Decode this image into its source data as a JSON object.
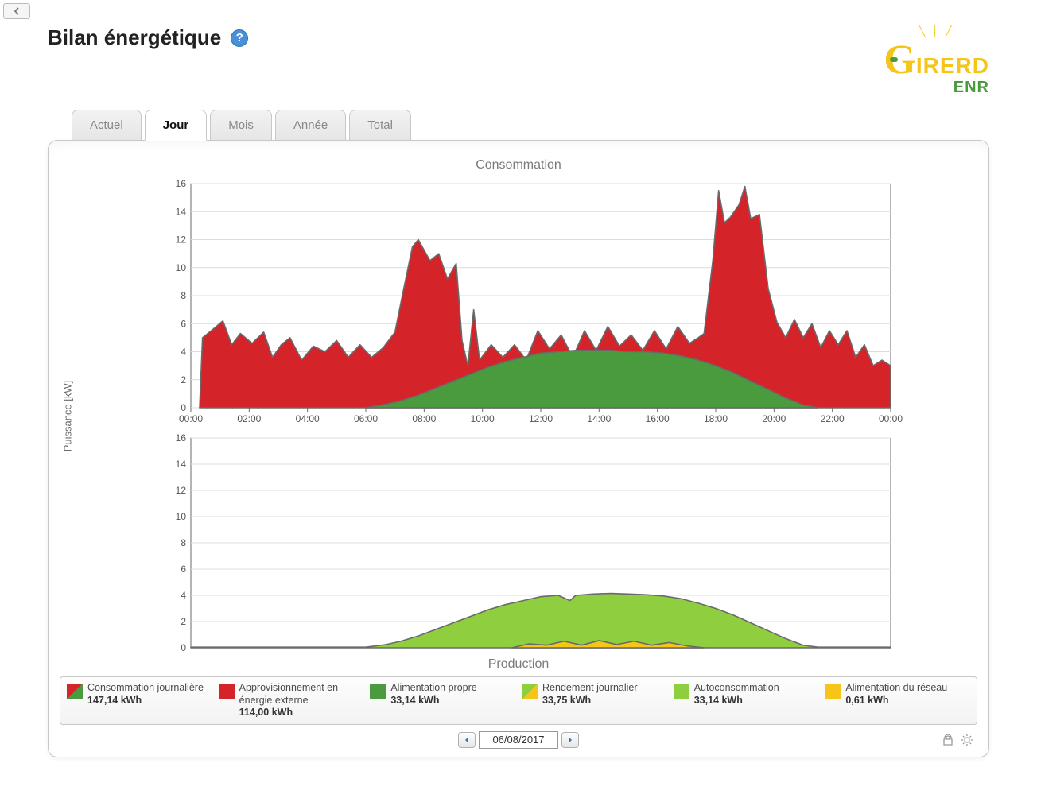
{
  "page_title": "Bilan énergétique",
  "logo": {
    "brand": "GIRERD",
    "sub": "ENR",
    "brand_color": "#f5c518",
    "sub_color": "#4a9b3e"
  },
  "tabs": [
    {
      "label": "Actuel",
      "active": false
    },
    {
      "label": "Jour",
      "active": true
    },
    {
      "label": "Mois",
      "active": false
    },
    {
      "label": "Année",
      "active": false
    },
    {
      "label": "Total",
      "active": false
    }
  ],
  "y_axis_label": "Puissance [kW]",
  "date_value": "06/08/2017",
  "chart_top": {
    "title": "Consommation",
    "type": "area",
    "ylim": [
      0,
      16
    ],
    "ytick_step": 2,
    "x_hours": [
      0,
      2,
      4,
      6,
      8,
      10,
      12,
      14,
      16,
      18,
      20,
      22,
      24
    ],
    "x_labels": [
      "00:00",
      "02:00",
      "04:00",
      "06:00",
      "08:00",
      "10:00",
      "12:00",
      "14:00",
      "16:00",
      "18:00",
      "20:00",
      "22:00",
      "00:00"
    ],
    "grid_color": "#dcdcdc",
    "axis_color": "#6a6a6a",
    "stroke_color": "#6a6a6a",
    "series_consumption": {
      "fill": "#d5232a",
      "points": [
        [
          0.3,
          0
        ],
        [
          0.4,
          5
        ],
        [
          0.7,
          5.5
        ],
        [
          1.1,
          6.2
        ],
        [
          1.4,
          4.5
        ],
        [
          1.7,
          5.3
        ],
        [
          2.1,
          4.6
        ],
        [
          2.5,
          5.4
        ],
        [
          2.8,
          3.6
        ],
        [
          3.1,
          4.5
        ],
        [
          3.4,
          5.0
        ],
        [
          3.8,
          3.4
        ],
        [
          4.2,
          4.4
        ],
        [
          4.6,
          4.0
        ],
        [
          5.0,
          4.8
        ],
        [
          5.4,
          3.6
        ],
        [
          5.8,
          4.5
        ],
        [
          6.2,
          3.6
        ],
        [
          6.6,
          4.3
        ],
        [
          7.0,
          5.4
        ],
        [
          7.3,
          8.5
        ],
        [
          7.6,
          11.5
        ],
        [
          7.8,
          12.0
        ],
        [
          8.2,
          10.5
        ],
        [
          8.5,
          11.0
        ],
        [
          8.8,
          9.2
        ],
        [
          9.1,
          10.3
        ],
        [
          9.3,
          4.8
        ],
        [
          9.5,
          3.0
        ],
        [
          9.7,
          7.0
        ],
        [
          9.9,
          3.4
        ],
        [
          10.3,
          4.5
        ],
        [
          10.7,
          3.6
        ],
        [
          11.1,
          4.5
        ],
        [
          11.5,
          3.4
        ],
        [
          11.9,
          5.5
        ],
        [
          12.3,
          4.2
        ],
        [
          12.7,
          5.2
        ],
        [
          13.1,
          3.6
        ],
        [
          13.5,
          5.5
        ],
        [
          13.9,
          4.1
        ],
        [
          14.3,
          5.8
        ],
        [
          14.7,
          4.4
        ],
        [
          15.1,
          5.2
        ],
        [
          15.5,
          4.1
        ],
        [
          15.9,
          5.5
        ],
        [
          16.3,
          4.2
        ],
        [
          16.7,
          5.8
        ],
        [
          17.1,
          4.6
        ],
        [
          17.4,
          5.0
        ],
        [
          17.6,
          5.3
        ],
        [
          17.9,
          10.5
        ],
        [
          18.1,
          15.5
        ],
        [
          18.3,
          13.2
        ],
        [
          18.5,
          13.6
        ],
        [
          18.8,
          14.5
        ],
        [
          19.0,
          15.8
        ],
        [
          19.2,
          13.5
        ],
        [
          19.5,
          13.8
        ],
        [
          19.8,
          8.5
        ],
        [
          20.1,
          6.1
        ],
        [
          20.4,
          5.0
        ],
        [
          20.7,
          6.3
        ],
        [
          21.0,
          5.0
        ],
        [
          21.3,
          6.0
        ],
        [
          21.6,
          4.3
        ],
        [
          21.9,
          5.5
        ],
        [
          22.2,
          4.5
        ],
        [
          22.5,
          5.5
        ],
        [
          22.8,
          3.6
        ],
        [
          23.1,
          4.5
        ],
        [
          23.4,
          3.0
        ],
        [
          23.7,
          3.4
        ],
        [
          24.0,
          3.0
        ]
      ]
    },
    "series_selfuse": {
      "fill": "#4a9b3e",
      "points": [
        [
          6.0,
          0
        ],
        [
          6.7,
          0.25
        ],
        [
          7.2,
          0.5
        ],
        [
          7.8,
          0.9
        ],
        [
          8.4,
          1.4
        ],
        [
          9.0,
          1.9
        ],
        [
          9.6,
          2.4
        ],
        [
          10.2,
          2.9
        ],
        [
          10.8,
          3.3
        ],
        [
          11.4,
          3.6
        ],
        [
          12.0,
          3.9
        ],
        [
          12.6,
          4.0
        ],
        [
          13.2,
          4.1
        ],
        [
          13.8,
          4.1
        ],
        [
          14.4,
          4.1
        ],
        [
          15.0,
          4.0
        ],
        [
          15.6,
          4.0
        ],
        [
          16.2,
          3.9
        ],
        [
          16.8,
          3.7
        ],
        [
          17.4,
          3.4
        ],
        [
          18.0,
          3.0
        ],
        [
          18.6,
          2.5
        ],
        [
          19.2,
          1.9
        ],
        [
          19.8,
          1.3
        ],
        [
          20.4,
          0.7
        ],
        [
          21.0,
          0.2
        ],
        [
          21.5,
          0
        ]
      ]
    }
  },
  "chart_bottom": {
    "title": "Production",
    "type": "area",
    "ylim": [
      0,
      16
    ],
    "ytick_step": 2,
    "grid_color": "#dcdcdc",
    "axis_color": "#6a6a6a",
    "stroke_color": "#6a6a6a",
    "series_production": {
      "fill": "#8fce3e",
      "points": [
        [
          0,
          0.05
        ],
        [
          5.0,
          0.05
        ],
        [
          6.0,
          0.05
        ],
        [
          6.7,
          0.25
        ],
        [
          7.2,
          0.5
        ],
        [
          7.8,
          0.9
        ],
        [
          8.4,
          1.4
        ],
        [
          9.0,
          1.9
        ],
        [
          9.6,
          2.4
        ],
        [
          10.2,
          2.9
        ],
        [
          10.8,
          3.3
        ],
        [
          11.4,
          3.6
        ],
        [
          12.0,
          3.9
        ],
        [
          12.6,
          4.0
        ],
        [
          13.0,
          3.6
        ],
        [
          13.2,
          4.0
        ],
        [
          13.8,
          4.1
        ],
        [
          14.4,
          4.15
        ],
        [
          15.0,
          4.1
        ],
        [
          15.6,
          4.05
        ],
        [
          16.2,
          3.95
        ],
        [
          16.8,
          3.75
        ],
        [
          17.4,
          3.4
        ],
        [
          18.0,
          3.0
        ],
        [
          18.6,
          2.5
        ],
        [
          19.2,
          1.9
        ],
        [
          19.8,
          1.3
        ],
        [
          20.4,
          0.7
        ],
        [
          21.0,
          0.2
        ],
        [
          21.5,
          0.05
        ],
        [
          24,
          0.05
        ]
      ]
    },
    "series_grid_feed": {
      "fill": "#f5c518",
      "points": [
        [
          11.0,
          0
        ],
        [
          11.6,
          0.3
        ],
        [
          12.2,
          0.2
        ],
        [
          12.8,
          0.5
        ],
        [
          13.4,
          0.2
        ],
        [
          14.0,
          0.55
        ],
        [
          14.6,
          0.25
        ],
        [
          15.2,
          0.5
        ],
        [
          15.8,
          0.2
        ],
        [
          16.4,
          0.4
        ],
        [
          17.0,
          0.15
        ],
        [
          17.6,
          0
        ]
      ]
    }
  },
  "legend": [
    {
      "label": "Consommation journalière",
      "value": "147,14 kWh",
      "c1": "#d5232a",
      "c2": "#4a9b3e",
      "split": true
    },
    {
      "label": "Approvisionnement en énergie externe",
      "value": "114,00 kWh",
      "c1": "#d5232a",
      "split": false
    },
    {
      "label": "Alimentation propre",
      "value": "33,14 kWh",
      "c1": "#4a9b3e",
      "split": false
    },
    {
      "label": "Rendement journalier",
      "value": "33,75 kWh",
      "c1": "#8fce3e",
      "c2": "#f5c518",
      "split": true
    },
    {
      "label": "Autoconsommation",
      "value": "33,14 kWh",
      "c1": "#8fce3e",
      "split": false
    },
    {
      "label": "Alimentation du réseau",
      "value": "0,61 kWh",
      "c1": "#f5c518",
      "split": false
    }
  ]
}
